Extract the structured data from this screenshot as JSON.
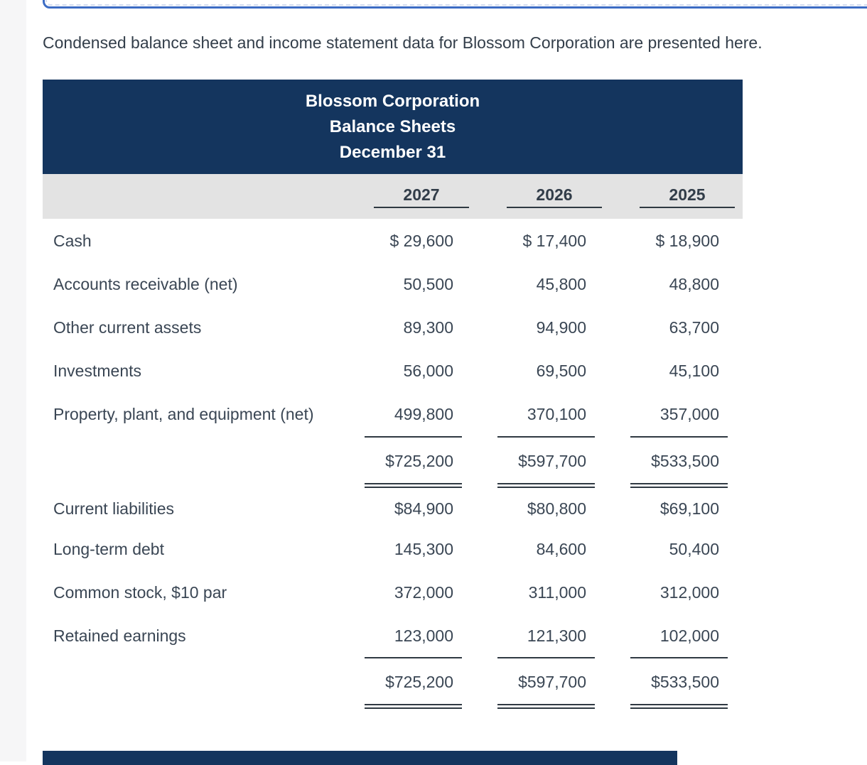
{
  "intro_text": "Condensed balance sheet and income statement data for Blossom Corporation are presented here.",
  "colors": {
    "header_navy": "#14355e",
    "year_row_gray": "#e3e3e3",
    "body_text": "#3a4654",
    "rule_line": "#2f3942",
    "dashed_border_blue": "#3c6cc4",
    "left_strip": "#f6f6f7"
  },
  "statement": {
    "title_lines": [
      "Blossom Corporation",
      "Balance Sheets",
      "December 31"
    ],
    "years": [
      "2027",
      "2026",
      "2025"
    ],
    "asset_rows": [
      {
        "label": "Cash",
        "v": [
          "$ 29,600",
          "$ 17,400",
          "$ 18,900"
        ]
      },
      {
        "label": "Accounts receivable (net)",
        "v": [
          "50,500",
          "45,800",
          "48,800"
        ]
      },
      {
        "label": "Other current assets",
        "v": [
          "89,300",
          "94,900",
          "63,700"
        ]
      },
      {
        "label": "Investments",
        "v": [
          "56,000",
          "69,500",
          "45,100"
        ]
      },
      {
        "label": "Property, plant, and equipment (net)",
        "v": [
          "499,800",
          "370,100",
          "357,000"
        ]
      }
    ],
    "assets_total": [
      "$725,200",
      "$597,700",
      "$533,500"
    ],
    "liability_rows": [
      {
        "label": "Current liabilities",
        "v": [
          "$84,900",
          "$80,800",
          "$69,100"
        ]
      },
      {
        "label": "Long-term debt",
        "v": [
          "145,300",
          "84,600",
          "50,400"
        ]
      },
      {
        "label": "Common stock, $10 par",
        "v": [
          "372,000",
          "311,000",
          "312,000"
        ]
      },
      {
        "label": "Retained earnings",
        "v": [
          "123,000",
          "121,300",
          "102,000"
        ]
      }
    ],
    "liabilities_total": [
      "$725,200",
      "$597,700",
      "$533,500"
    ]
  }
}
